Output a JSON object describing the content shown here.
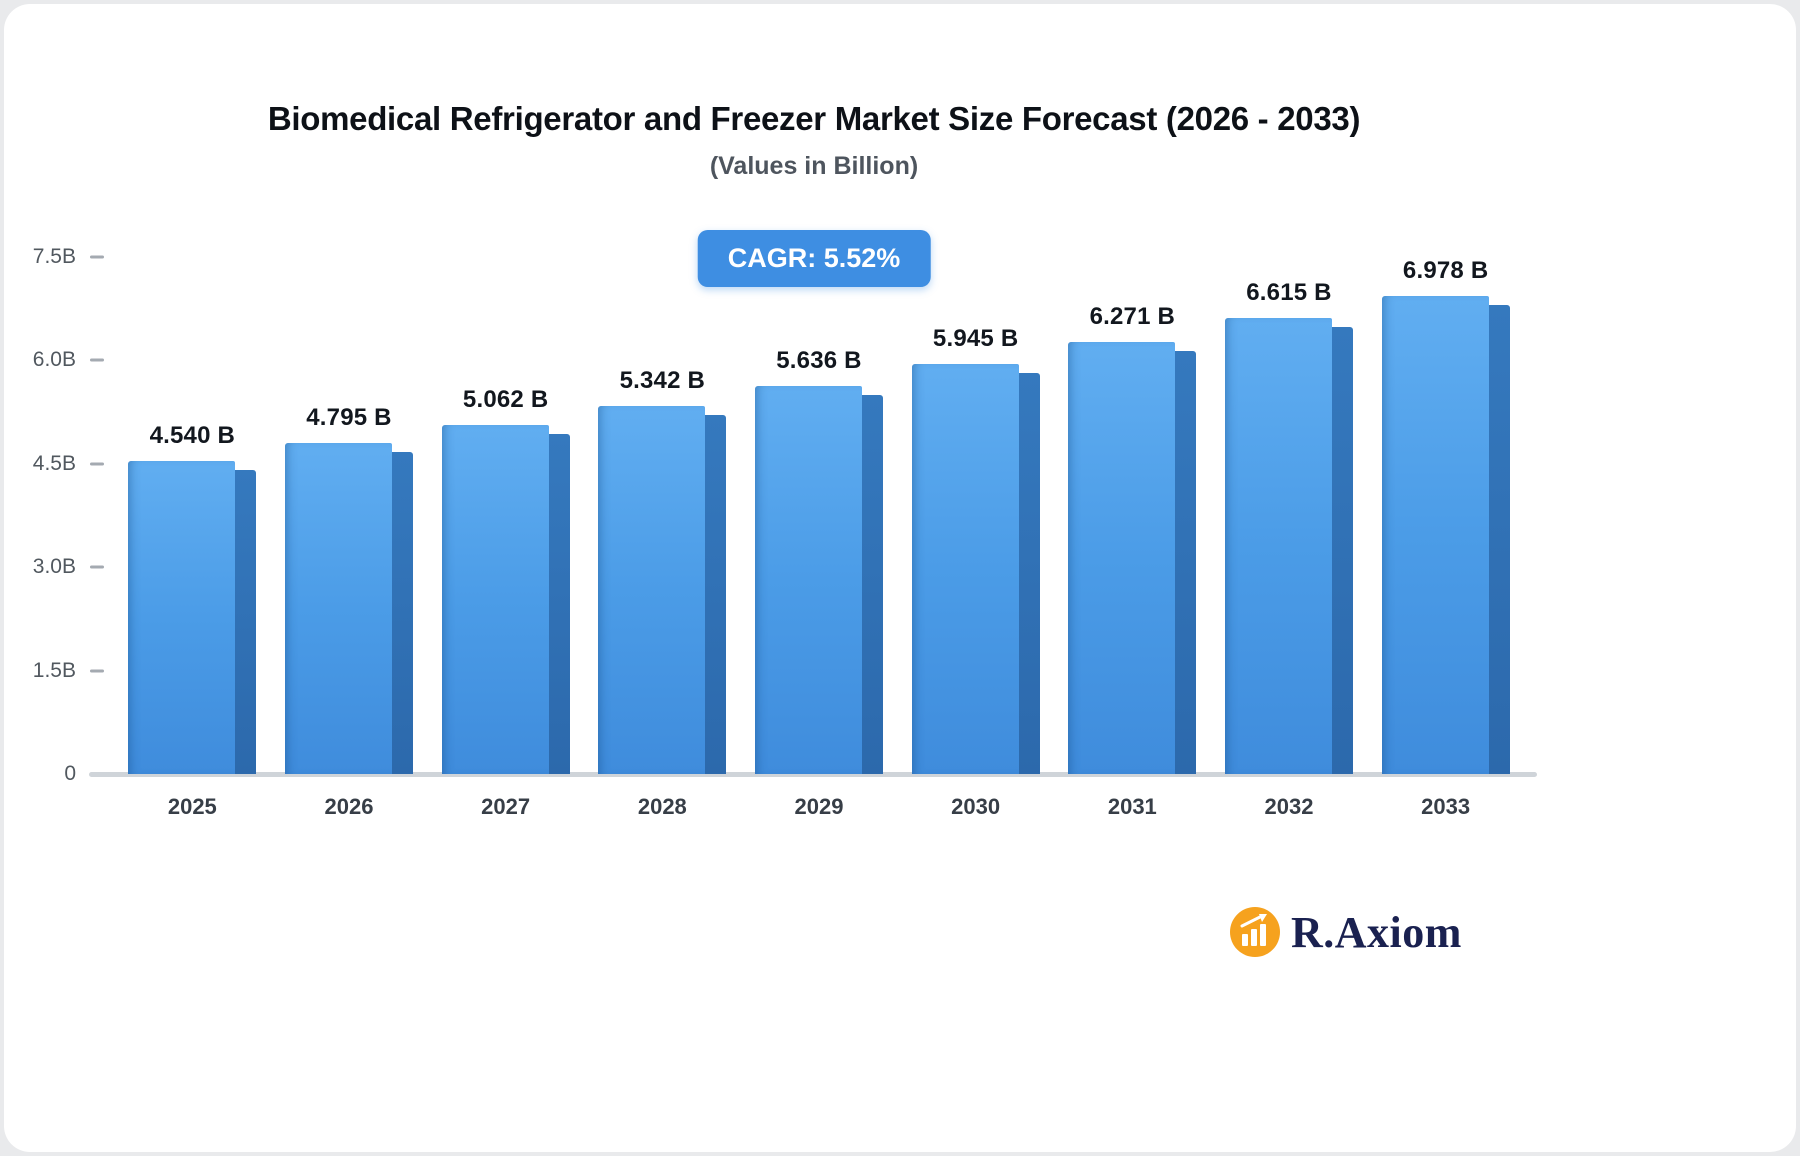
{
  "header": {
    "title": "Biomedical Refrigerator and Freezer Market Size Forecast (2026 - 2033)",
    "subtitle": "(Values in Billion)"
  },
  "badge": {
    "label": "CAGR: 5.52%",
    "bg": "#3E8EE2"
  },
  "chart_data": {
    "type": "bar",
    "title": "Biomedical Refrigerator and Freezer Market Size Forecast (2026 - 2033)",
    "subtitle": "(Values in Billion)",
    "xlabel": "",
    "ylabel": "",
    "categories": [
      "2025",
      "2026",
      "2027",
      "2028",
      "2029",
      "2030",
      "2031",
      "2032",
      "2033"
    ],
    "values": [
      4.54,
      4.795,
      5.062,
      5.342,
      5.636,
      5.945,
      6.271,
      6.615,
      6.978
    ],
    "value_labels": [
      "4.540 B",
      "4.795 B",
      "5.062 B",
      "5.342 B",
      "5.636 B",
      "5.945 B",
      "6.271 B",
      "6.615 B",
      "6.978 B"
    ],
    "ylim": [
      0,
      7.5
    ],
    "yticks": [
      {
        "label": "7.5B",
        "value": 7.5
      },
      {
        "label": "6.0B",
        "value": 6.0
      },
      {
        "label": "4.5B",
        "value": 4.5
      },
      {
        "label": "3.0B",
        "value": 3.0
      },
      {
        "label": "1.5B",
        "value": 1.5
      },
      {
        "label": "0",
        "value": 0
      }
    ],
    "grid": false,
    "legend": false,
    "colors": {
      "bar_face_top": "#61AEF1",
      "bar_face_bottom": "#3F8CDC",
      "bar_side": "#2C69AC",
      "axis_line": "#cfd4d9"
    }
  },
  "logo": {
    "text": "R.Axiom",
    "icon": "bar-chart-logo-icon",
    "accent": "#F6A21E",
    "text_color": "#1a2150"
  }
}
